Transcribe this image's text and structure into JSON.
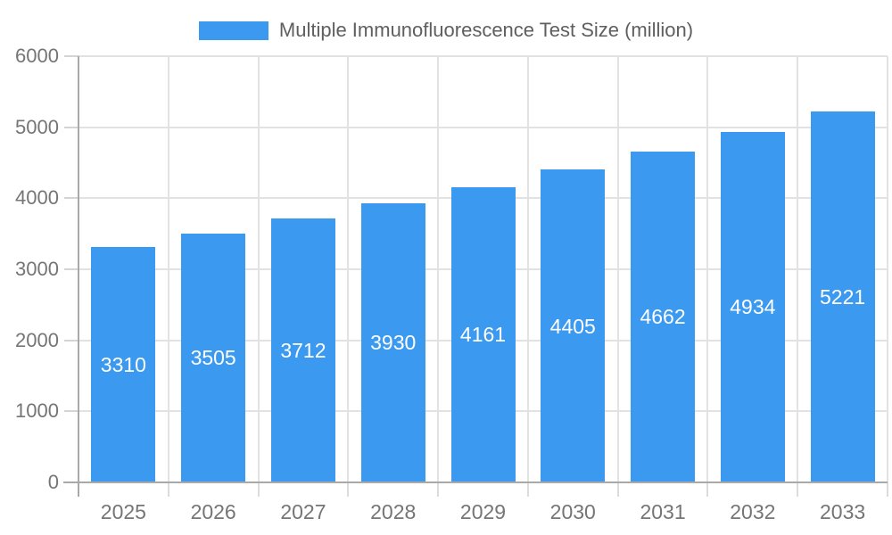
{
  "legend": {
    "label": "Multiple Immunofluorescence Test Size (million)"
  },
  "colors": {
    "bar": "#3b99f0",
    "gridline": "#e2e2e2",
    "axis": "#a9a9a9",
    "tick": "#d4d4d4",
    "tick_label": "#757575",
    "value_label": "#ffffff",
    "legend_text": "#5f5f5f",
    "background": "#ffffff"
  },
  "chart_data": {
    "type": "bar",
    "title": "Multiple Immunofluorescence Test Size (million)",
    "series_name": "Multiple Immunofluorescence Test Size (million)",
    "categories": [
      "2025",
      "2026",
      "2027",
      "2028",
      "2029",
      "2030",
      "2031",
      "2032",
      "2033"
    ],
    "values": [
      3310,
      3505,
      3712,
      3930,
      4161,
      4405,
      4662,
      4934,
      5221
    ],
    "xlabel": "",
    "ylabel": "",
    "ylim": [
      0,
      6000
    ],
    "ytick_interval": 1000,
    "yticks": [
      0,
      1000,
      2000,
      3000,
      4000,
      5000,
      6000
    ],
    "grid": true,
    "legend_position": "top-center",
    "value_labels": "inside-center"
  }
}
